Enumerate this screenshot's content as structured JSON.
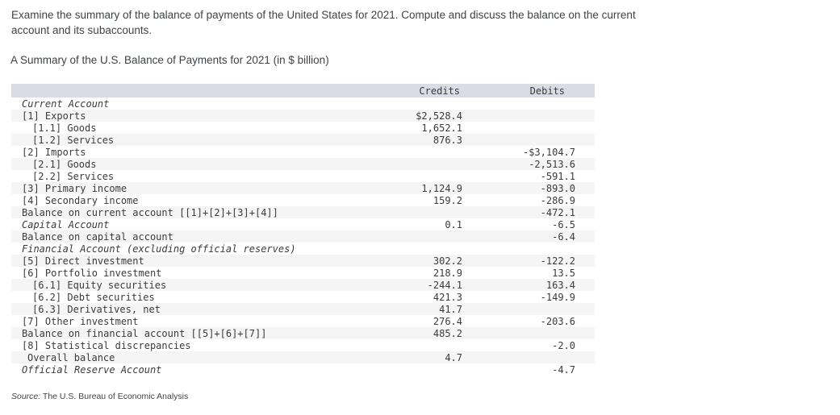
{
  "question": {
    "line1": "Examine the summary of the balance of payments of the United States for 2021. Compute and discuss the balance on the current",
    "line2": "account and its subaccounts."
  },
  "table_title": "A Summary of the U.S. Balance of Payments for 2021 (in $ billion)",
  "table": {
    "columns": [
      "",
      "Credits",
      "Debits"
    ],
    "rows": [
      {
        "label": "Current Account",
        "credits": "",
        "debits": "",
        "style": "section",
        "indent": 0
      },
      {
        "label": "[1] Exports",
        "credits": "$2,528.4",
        "debits": "",
        "style": "normal",
        "indent": 0
      },
      {
        "label": "[1.1] Goods",
        "credits": "1,652.1",
        "debits": "",
        "style": "normal",
        "indent": 2
      },
      {
        "label": "[1.2] Services",
        "credits": "876.3",
        "debits": "",
        "style": "normal",
        "indent": 2
      },
      {
        "label": "[2] Imports",
        "credits": "",
        "debits": "-$3,104.7",
        "style": "normal",
        "indent": 0
      },
      {
        "label": "[2.1] Goods",
        "credits": "",
        "debits": "-2,513.6",
        "style": "normal",
        "indent": 2
      },
      {
        "label": "[2.2] Services",
        "credits": "",
        "debits": "-591.1",
        "style": "normal",
        "indent": 2
      },
      {
        "label": "[3] Primary income",
        "credits": "1,124.9",
        "debits": "-893.0",
        "style": "normal",
        "indent": 0
      },
      {
        "label": "[4] Secondary income",
        "credits": "159.2",
        "debits": "-286.9",
        "style": "normal",
        "indent": 0
      },
      {
        "label": "Balance on current account [[1]+[2]+[3]+[4]]",
        "credits": "",
        "debits": "-472.1",
        "style": "normal",
        "indent": 0
      },
      {
        "label": "Capital Account",
        "credits": "0.1",
        "debits": "-6.5",
        "style": "section",
        "indent": 0
      },
      {
        "label": "Balance on capital account",
        "credits": "",
        "debits": "-6.4",
        "style": "normal",
        "indent": 0
      },
      {
        "label": "Financial Account (excluding official reserves)",
        "credits": "",
        "debits": "",
        "style": "section",
        "indent": 0
      },
      {
        "label": "[5] Direct investment",
        "credits": "302.2",
        "debits": "-122.2",
        "style": "normal",
        "indent": 0
      },
      {
        "label": "[6] Portfolio investment",
        "credits": "218.9",
        "debits": "13.5",
        "style": "normal",
        "indent": 0
      },
      {
        "label": "[6.1] Equity securities",
        "credits": "-244.1",
        "debits": "163.4",
        "style": "normal",
        "indent": 2
      },
      {
        "label": "[6.2] Debt securities",
        "credits": "421.3",
        "debits": "-149.9",
        "style": "normal",
        "indent": 2
      },
      {
        "label": "[6.3] Derivatives, net",
        "credits": "41.7",
        "debits": "",
        "style": "normal",
        "indent": 2
      },
      {
        "label": "[7] Other investment",
        "credits": "276.4",
        "debits": "-203.6",
        "style": "normal",
        "indent": 0
      },
      {
        "label": "Balance on financial account [[5]+[6]+[7]]",
        "credits": "485.2",
        "debits": "",
        "style": "normal",
        "indent": 0
      },
      {
        "label": "[8] Statistical discrepancies",
        "credits": "",
        "debits": "-2.0",
        "style": "normal",
        "indent": 0
      },
      {
        "label": "Overall balance",
        "credits": "4.7",
        "debits": "",
        "style": "normal",
        "indent": 1
      },
      {
        "label": "Official Reserve Account",
        "credits": "",
        "debits": "-4.7",
        "style": "section",
        "indent": 0
      }
    ]
  },
  "source": {
    "prefix": "Source:",
    "rest": " The U.S. Bureau of Economic Analysis"
  },
  "colors": {
    "header_bg": "#d9dbe5",
    "stripe_bg": "#f5f5f5",
    "table_text": "#3b3b3b",
    "body_text": "#404345"
  }
}
